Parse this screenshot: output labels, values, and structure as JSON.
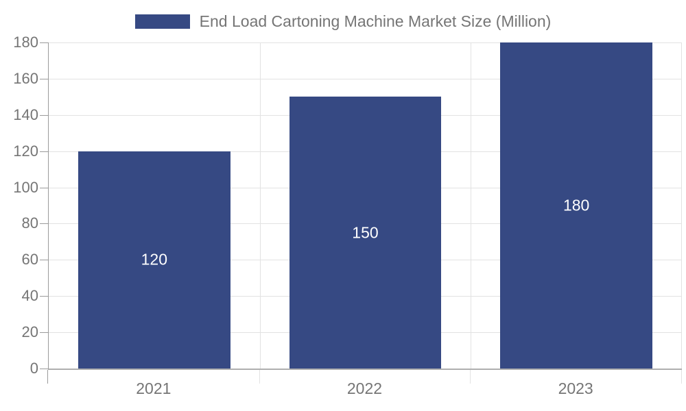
{
  "chart_data": {
    "type": "bar",
    "title": "End Load Cartoning Machine Market Size (Million)",
    "categories": [
      "2021",
      "2022",
      "2023"
    ],
    "series": [
      {
        "name": "End Load Cartoning Machine Market Size (Million)",
        "values": [
          120,
          150,
          180
        ]
      }
    ],
    "xlabel": "",
    "ylabel": "",
    "ylim": [
      0,
      180
    ],
    "yticks": [
      0,
      20,
      40,
      60,
      80,
      100,
      120,
      140,
      160,
      180
    ],
    "grid": true,
    "legend_position": "top",
    "value_label_position": "inside-middle",
    "colors": {
      "bar": "#364983",
      "value_label": "#ffffff",
      "axis_line": "#9a9a9a",
      "gridline": "#e2e2e2",
      "tick_label": "#757575",
      "legend_text": "#757575",
      "background": "#ffffff"
    }
  }
}
